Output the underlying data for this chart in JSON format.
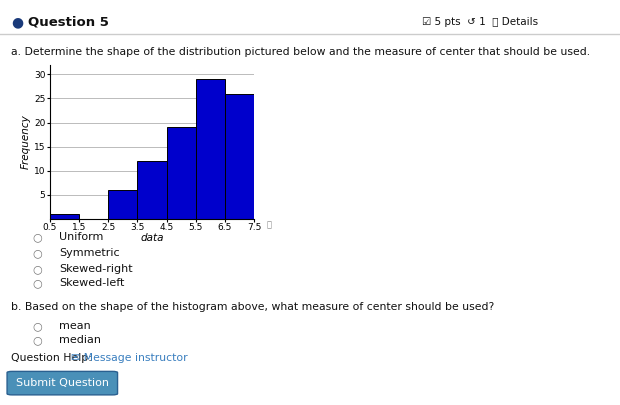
{
  "title": "Question 5",
  "pts_text": "5 pts",
  "question_a": "a. Determine the shape of the distribution pictured below and the measure of center that should be used.",
  "question_b": "b. Based on the shape of the histogram above, what measure of center should be used?",
  "bar_edges": [
    0.5,
    1.5,
    2.5,
    3.5,
    4.5,
    5.5,
    6.5,
    7.5
  ],
  "bar_heights": [
    1,
    0,
    6,
    12,
    19,
    29,
    26
  ],
  "bar_color": "#0000CC",
  "bar_edge_color": "#000000",
  "xlabel": "data",
  "ylabel": "Frequency",
  "xlim": [
    0.5,
    7.5
  ],
  "ylim": [
    0,
    32
  ],
  "yticks": [
    5,
    10,
    15,
    20,
    25,
    30
  ],
  "xtick_labels": [
    "0.5",
    "1.5",
    "2.5",
    "3.5",
    "4.5",
    "5.5",
    "6.5",
    "7.5"
  ],
  "options_a": [
    "Uniform",
    "Symmetric",
    "Skewed-right",
    "Skewed-left"
  ],
  "options_b": [
    "mean",
    "median"
  ],
  "question_help_text": "Question Help:",
  "message_instructor_text": "Message instructor",
  "submit_text": "Submit Question",
  "bg_color": "#ffffff",
  "header_dot_color": "#1a3a7a",
  "submit_btn_color": "#4a90b8",
  "link_color": "#3a7fbf",
  "grid_color": "#bbbbbb",
  "header_line_color": "#cccccc"
}
